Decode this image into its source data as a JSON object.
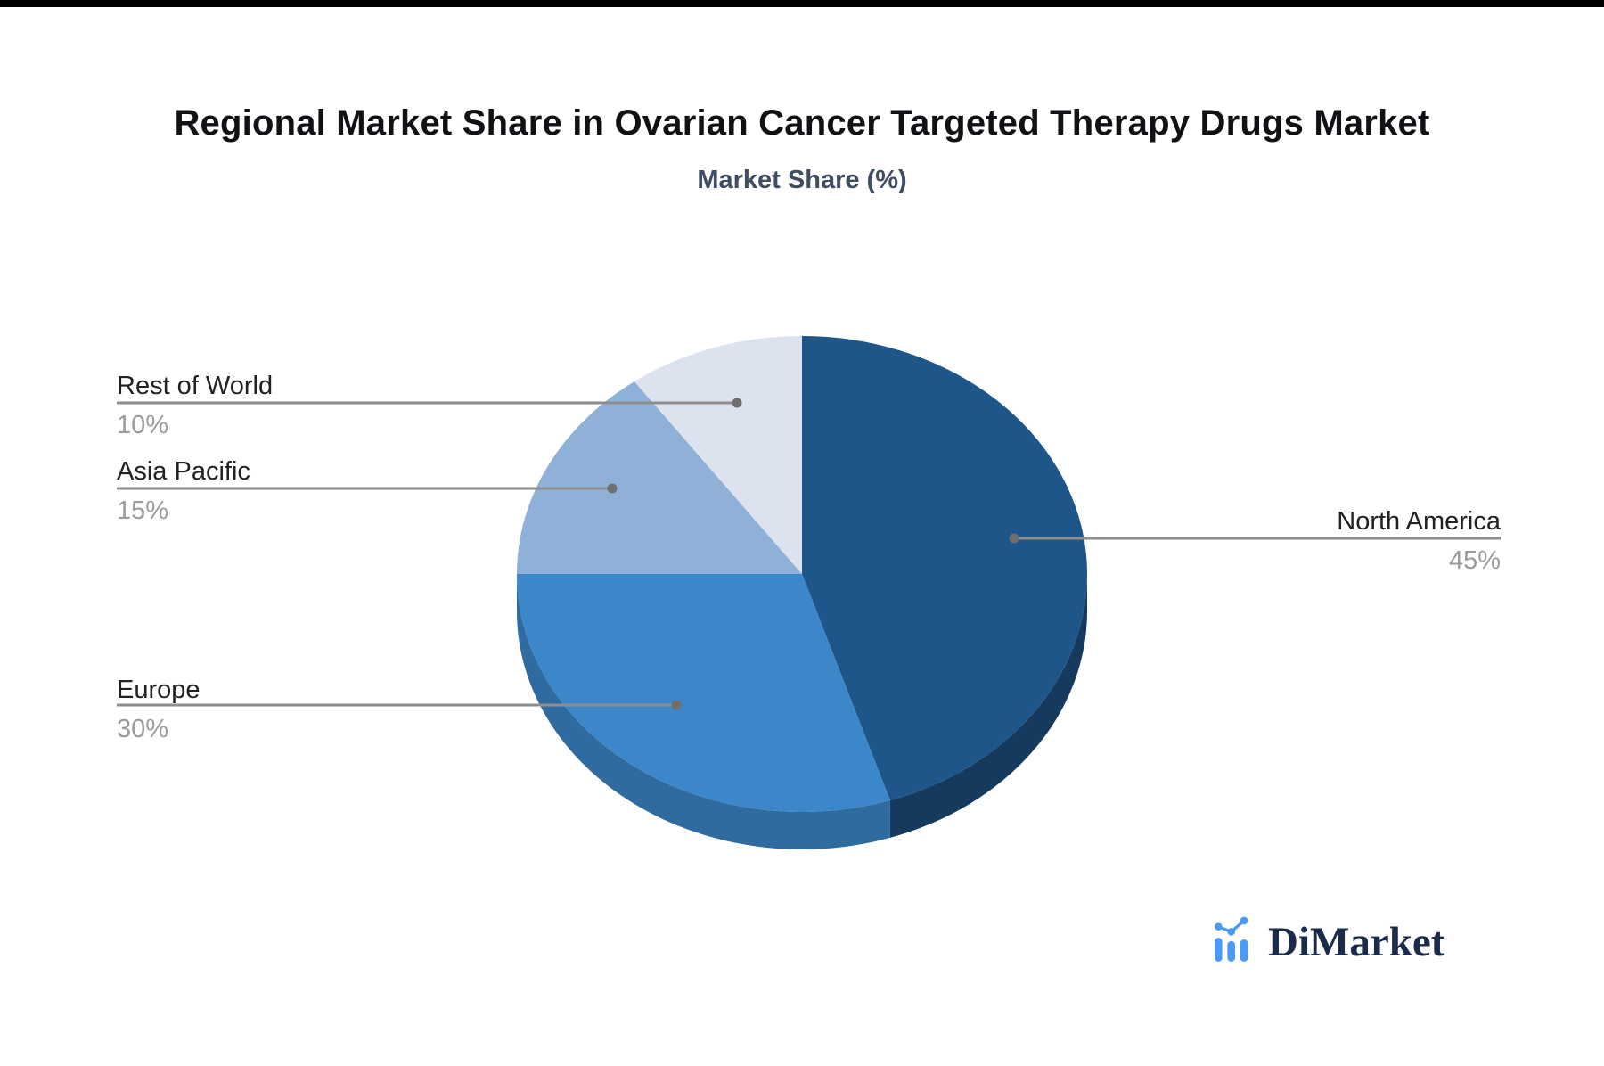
{
  "page": {
    "background": "#ffffff"
  },
  "header": {
    "title": "Regional Market Share in Ovarian Cancer Targeted Therapy Drugs Market",
    "subtitle": "Market Share (%)"
  },
  "logo": {
    "text": "DiMarket",
    "icon": "bar-chart-trend-icon",
    "icon_color": "#4A9BF5",
    "text_color": "#1A2B49"
  },
  "chart_data": {
    "type": "pie",
    "title": "Regional Market Share in Ovarian Cancer Targeted Therapy Drugs Market",
    "subtitle": "Market Share (%)",
    "unit": "%",
    "style": "3d-pie",
    "start_angle_deg": 0,
    "direction": "clockwise",
    "legend_position": "none",
    "label_style": "callout-lines-with-dots",
    "line_color": "#8E8E8E",
    "dot_color": "#6F6F6F",
    "categories": [
      "North America",
      "Europe",
      "Asia Pacific",
      "Rest of World"
    ],
    "values": [
      45,
      30,
      15,
      10
    ],
    "slices": [
      {
        "name": "North America",
        "value": 45,
        "pct_label": "45%",
        "color": "#1E5689",
        "side_color": "#16395E",
        "label_side": "right"
      },
      {
        "name": "Europe",
        "value": 30,
        "pct_label": "30%",
        "color": "#3C87C9",
        "side_color": "#2F6B9E",
        "label_side": "left"
      },
      {
        "name": "Asia Pacific",
        "value": 15,
        "pct_label": "15%",
        "color": "#8FB1D8",
        "side_color": null,
        "label_side": "left"
      },
      {
        "name": "Rest of World",
        "value": 10,
        "pct_label": "10%",
        "color": "#DCE3EE",
        "side_color": null,
        "label_side": "left"
      }
    ]
  }
}
